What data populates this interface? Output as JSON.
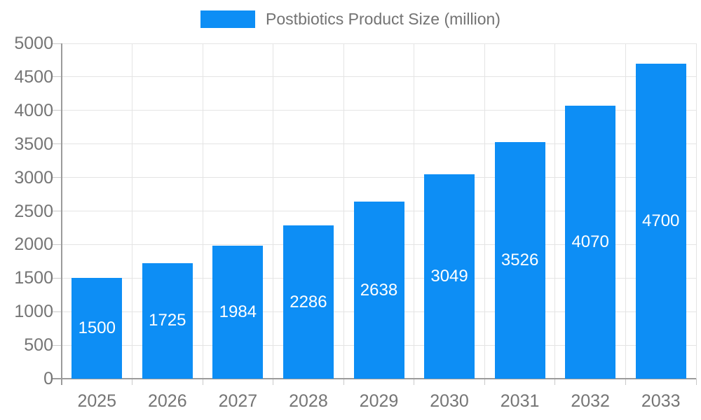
{
  "chart_data": {
    "type": "bar",
    "title": "Postbiotics Product Size (million)",
    "legend_position": "top",
    "categories": [
      "2025",
      "2026",
      "2027",
      "2028",
      "2029",
      "2030",
      "2031",
      "2032",
      "2033"
    ],
    "series": [
      {
        "name": "Postbiotics Product Size (million)",
        "values": [
          1500,
          1725,
          1984,
          2286,
          2638,
          3049,
          3526,
          4070,
          4700
        ]
      }
    ],
    "xlabel": "",
    "ylabel": "",
    "ylim": [
      0,
      5000
    ],
    "ytick_step": 500,
    "ytick_labels": [
      "0",
      "500",
      "1000",
      "1500",
      "2000",
      "2500",
      "3000",
      "3500",
      "4000",
      "4500",
      "5000"
    ],
    "grid": true,
    "value_labels_shown": true,
    "colors": {
      "bar": "#0d8ef5",
      "value_label": "#ffffff",
      "axis_text": "#757575",
      "legend_text": "#737373",
      "gridline": "#e4e4e4",
      "tick": "#c9c9c9",
      "axis_line": "#9b9b9b",
      "background": "#ffffff"
    }
  }
}
